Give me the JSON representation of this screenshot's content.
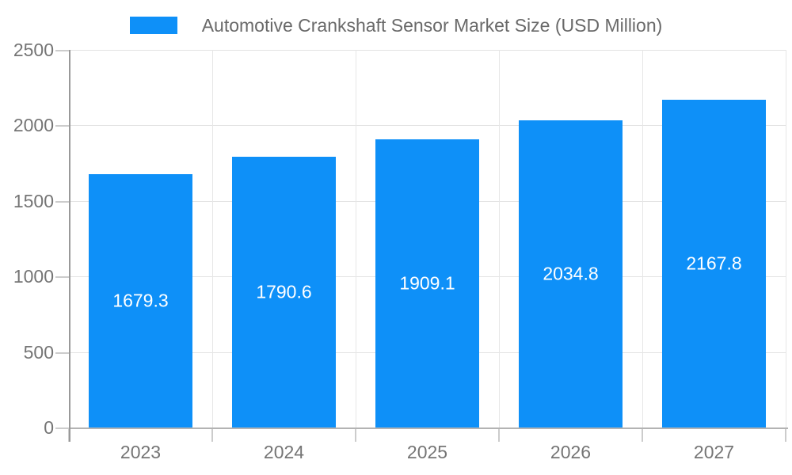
{
  "legend": {
    "label": "Automotive Crankshaft Sensor Market Size (USD Million)",
    "swatch_color": "#0e90f8"
  },
  "chart_data": {
    "type": "bar",
    "title": "Automotive Crankshaft Sensor Market Size (USD Million)",
    "categories": [
      "2023",
      "2024",
      "2025",
      "2026",
      "2027"
    ],
    "series": [
      {
        "name": "Automotive Crankshaft Sensor Market Size (USD Million)",
        "values": [
          1679.3,
          1790.6,
          1909.1,
          2034.8,
          2167.8
        ]
      }
    ],
    "value_labels": [
      "1679.3",
      "1790.6",
      "1909.1",
      "2034.8",
      "2167.8"
    ],
    "xlabel": "",
    "ylabel": "",
    "ylim": [
      0,
      2500
    ],
    "yticks": [
      0,
      500,
      1000,
      1500,
      2000,
      2500
    ],
    "ytick_labels": [
      "0",
      "500",
      "1000",
      "1500",
      "2000",
      "2500"
    ],
    "grid": "both",
    "legend_position": "top",
    "bar_label_position": "center-inside"
  },
  "colors": {
    "bar": "#0e90f8",
    "bar_label": "#ffffff",
    "grid_h": "#e3e3e3",
    "grid_v": "#e6e6e6",
    "axis_y": "#999999",
    "axis_x": "#b3b3b3",
    "tick": "#cccccc",
    "axis_label": "#757575",
    "legend_text": "#696969",
    "background": "#ffffff"
  }
}
